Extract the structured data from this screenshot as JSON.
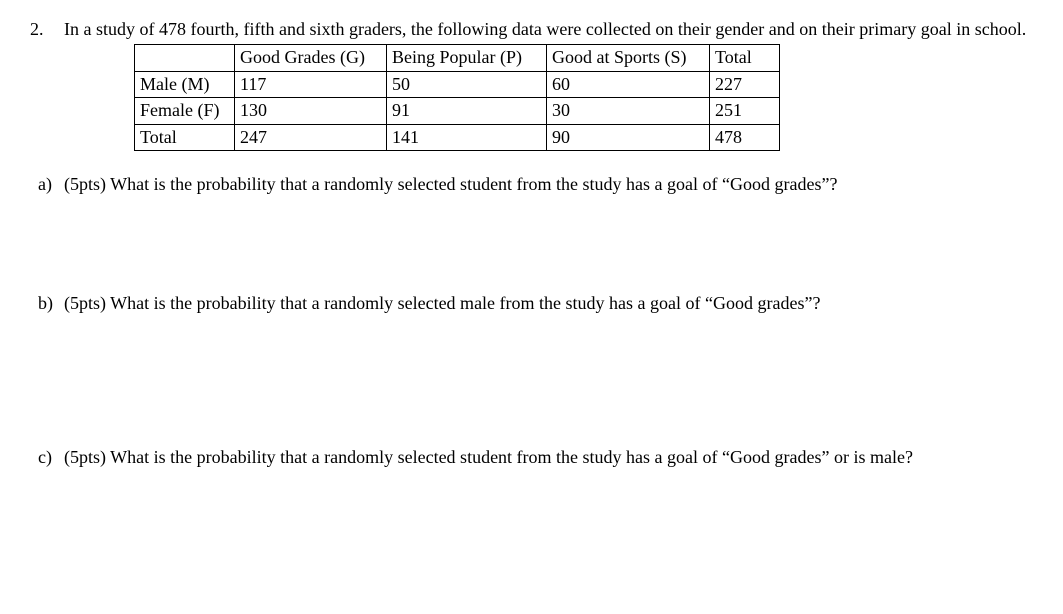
{
  "question": {
    "number": "2.",
    "intro": "In a study of 478 fourth, fifth and sixth graders, the following data were collected on their gender and on their primary goal in school."
  },
  "table": {
    "columns": [
      "",
      "Good Grades (G)",
      "Being Popular (P)",
      "Good at Sports (S)",
      "Total"
    ],
    "rows": [
      [
        "Male (M)",
        "117",
        "50",
        "60",
        "227"
      ],
      [
        "Female (F)",
        "130",
        "91",
        "30",
        "251"
      ],
      [
        "Total",
        "247",
        "141",
        "90",
        "478"
      ]
    ],
    "border_color": "#000000",
    "background_color": "#ffffff",
    "font_family": "Times New Roman",
    "font_size": 18
  },
  "subquestions": {
    "a": {
      "letter": "a)",
      "text": "(5pts) What is the probability that a randomly selected student from the study has a goal of “Good grades”?"
    },
    "b": {
      "letter": "b)",
      "text": "(5pts) What is the probability that a randomly selected male from the study has a goal of “Good grades”?"
    },
    "c": {
      "letter": "c)",
      "text": "(5pts) What is the probability that a randomly selected student from the study has a goal of “Good grades” or is male?"
    }
  }
}
